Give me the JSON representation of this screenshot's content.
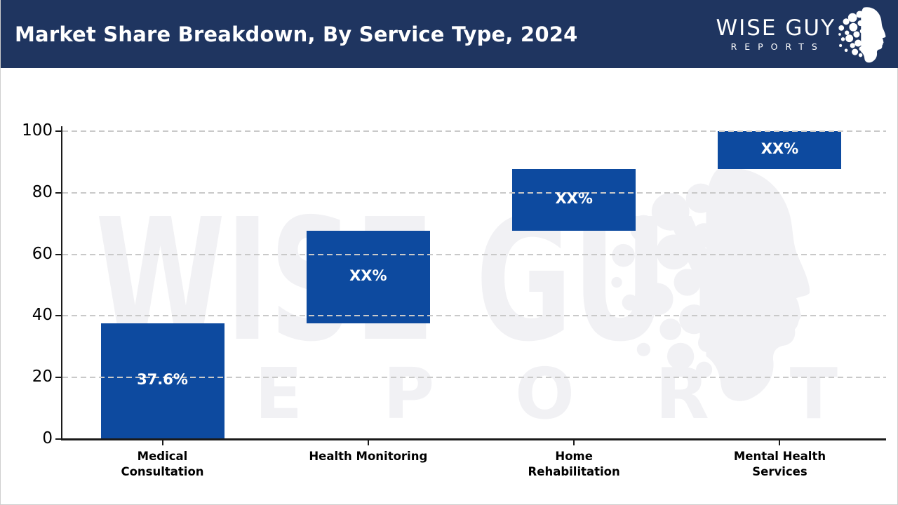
{
  "header": {
    "title": "Market Share Breakdown, By Service Type, 2024",
    "logo": {
      "line1": "WISE GUY",
      "line2": "REPORTS",
      "face_icon": "dotted-head-profile-icon"
    }
  },
  "watermark": {
    "line1": "WISE GUY",
    "line2": "R E P O R T S",
    "face_icon": "dotted-head-profile-icon"
  },
  "chart_data": {
    "type": "bar",
    "subtype": "waterfall",
    "title": "Market Share Breakdown, By Service Type, 2024",
    "categories": [
      "Medical Consultation",
      "Health Monitoring",
      "Home Rehabilitation",
      "Mental Health Services"
    ],
    "category_label_lines": [
      [
        "Medical",
        "Consultation"
      ],
      [
        "Health Monitoring"
      ],
      [
        "Home",
        "Rehabilitation"
      ],
      [
        "Mental Health",
        "Services"
      ]
    ],
    "segments": [
      {
        "category": "Medical Consultation",
        "start": 0,
        "end": 37.6,
        "label": "37.6%"
      },
      {
        "category": "Health Monitoring",
        "start": 37.6,
        "end": 67.6,
        "label": "XX%"
      },
      {
        "category": "Home Rehabilitation",
        "start": 67.6,
        "end": 87.6,
        "label": "XX%"
      },
      {
        "category": "Mental Health Services",
        "start": 87.6,
        "end": 100,
        "label": "XX%"
      }
    ],
    "xlabel": "",
    "ylabel": "",
    "ylim": [
      0,
      100
    ],
    "yticks": [
      0,
      20,
      40,
      60,
      80,
      100
    ],
    "grid": "horizontal-dashed-above-bars",
    "legend": "none",
    "bar_color": "#0d4a9f",
    "value_label_color": "#ffffff"
  },
  "colors": {
    "header_bg": "#1f3560",
    "bar": "#0d4a9f",
    "grid": "#c9c9c9",
    "axis": "#1a1a1a",
    "text": "#000000",
    "watermark": "#f1f1f4"
  }
}
